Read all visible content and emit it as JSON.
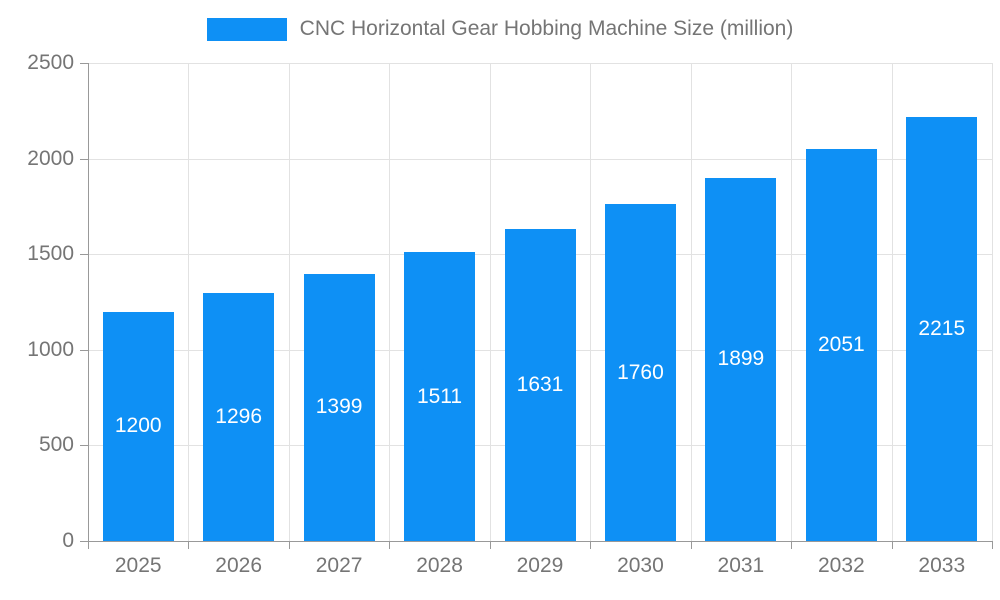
{
  "chart_data": {
    "type": "bar",
    "title": "CNC Horizontal Gear Hobbing Machine Size (million)",
    "categories": [
      "2025",
      "2026",
      "2027",
      "2028",
      "2029",
      "2030",
      "2031",
      "2032",
      "2033"
    ],
    "values": [
      1200,
      1296,
      1399,
      1511,
      1631,
      1760,
      1899,
      2051,
      2215
    ],
    "xlabel": "",
    "ylabel": "",
    "ylim": [
      0,
      2500
    ],
    "yticks": [
      0,
      500,
      1000,
      1500,
      2000,
      2500
    ],
    "grid": "on",
    "legend_position": "top-center",
    "bar_labels_position": "inside-center",
    "colors": {
      "bar": "#0e90f5",
      "bar_label": "#ffffff",
      "axis_text": "#757575",
      "axis_line": "#999999",
      "gridline": "#e2e2e2",
      "background": "#ffffff"
    }
  }
}
